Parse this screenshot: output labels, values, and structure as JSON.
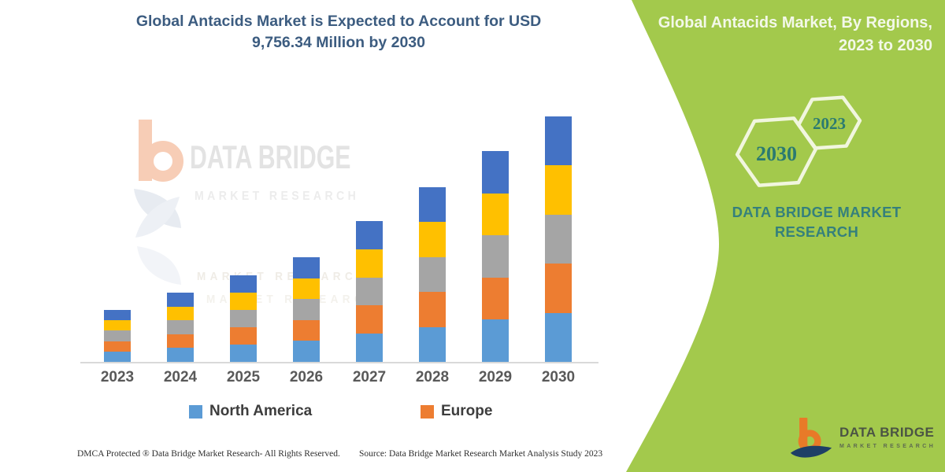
{
  "accent_green": "#a3c94c",
  "left": {
    "title_line1": "Global Antacids Market is Expected to Account for USD",
    "title_line2": "9,756.34 Million by 2030"
  },
  "watermark": {
    "brand": "DATA BRIDGE",
    "sub": "MARKET RESEARCH",
    "ghost1": "MARKET RESEARCH",
    "ghost2": "MARKET RESEARCH"
  },
  "chart_data": {
    "type": "bar",
    "stacked": true,
    "title": "Global Antacids Market is Expected to Account for USD 9,756.34 Million by 2030",
    "categories": [
      "2023",
      "2024",
      "2025",
      "2026",
      "2027",
      "2028",
      "2029",
      "2030"
    ],
    "series": [
      {
        "name": "North America",
        "color": "#5B9BD5",
        "values": [
          412.8,
          550.4,
          688.0,
          831.8,
          1119.5,
          1388.4,
          1676.1,
          1951.3
        ]
      },
      {
        "name": "Europe",
        "color": "#ED7D31",
        "values": [
          412.8,
          550.4,
          688.0,
          831.8,
          1119.5,
          1388.4,
          1676.1,
          1951.3
        ]
      },
      {
        "name": "(unlabeled gray series)",
        "color": "#A5A5A5",
        "values": [
          412.8,
          550.4,
          688.0,
          831.8,
          1119.5,
          1388.4,
          1676.1,
          1951.3
        ]
      },
      {
        "name": "(unlabeled yellow series)",
        "color": "#FFC000",
        "values": [
          412.8,
          550.4,
          688.0,
          831.8,
          1119.5,
          1388.4,
          1676.1,
          1951.3
        ]
      },
      {
        "name": "(unlabeled blue series)",
        "color": "#4472C4",
        "values": [
          412.8,
          550.4,
          688.0,
          831.8,
          1119.5,
          1388.4,
          1676.1,
          1951.3
        ]
      }
    ],
    "totals_estimated": [
      2064,
      2752,
      3440,
      4159,
      5597,
      6942,
      8380,
      9756.34
    ],
    "labeled_value": "USD 9,756.34 Million by 2030",
    "values_estimated_from_bar_heights": true,
    "ylim": [
      0,
      10000
    ],
    "grid": false,
    "xlabel": "",
    "ylabel": "",
    "legend_position": "bottom"
  },
  "legend": {
    "items": [
      {
        "label": "North America",
        "color": "#5B9BD5"
      },
      {
        "label": "Europe",
        "color": "#ED7D31"
      }
    ]
  },
  "footer": {
    "dmca": "DMCA Protected ® Data Bridge Market Research-  All Rights Reserved.",
    "source": "Source: Data Bridge Market Research  Market Analysis Study 2023"
  },
  "panel": {
    "header_line1": "Global Antacids Market, By Regions,",
    "header_line2": "2023 to 2030",
    "hex_large_label": "2030",
    "hex_small_label": "2023",
    "brand_text": "DATA BRIDGE MARKET RESEARCH",
    "logo_name": "DATA BRIDGE",
    "logo_sub": "MARKET RESEARCH"
  }
}
